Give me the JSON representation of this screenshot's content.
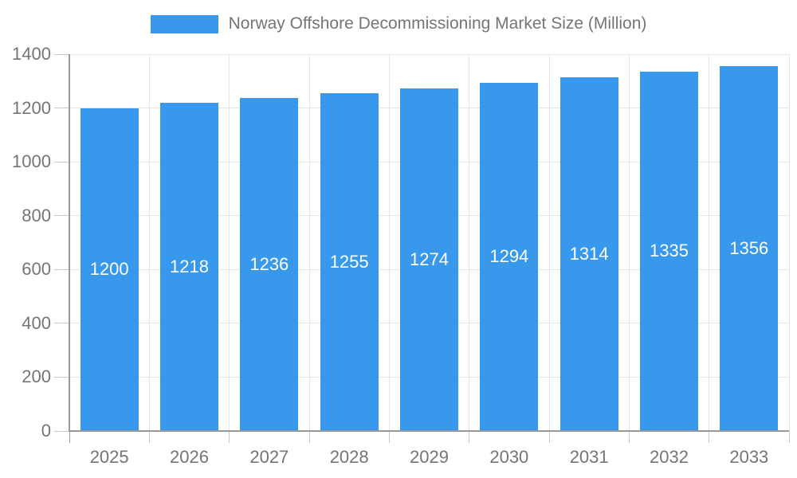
{
  "chart_data": {
    "type": "bar",
    "title": "Norway Offshore Decommissioning Market Size (Million)",
    "categories": [
      "2025",
      "2026",
      "2027",
      "2028",
      "2029",
      "2030",
      "2031",
      "2032",
      "2033"
    ],
    "values": [
      1200,
      1218,
      1236,
      1255,
      1274,
      1294,
      1314,
      1335,
      1356
    ],
    "xlabel": "",
    "ylabel": "",
    "ylim": [
      0,
      1400
    ],
    "yticks": [
      0,
      200,
      400,
      600,
      800,
      1000,
      1200,
      1400
    ],
    "grid": true,
    "legend_position": "top",
    "bar_color": "#3899EC",
    "bar_label_color": "#FFFFFF",
    "text_color": "#757575",
    "axis_color": "#999999",
    "gridline_color": "#E6E6E6",
    "tick_color": "#C9C9C9"
  }
}
